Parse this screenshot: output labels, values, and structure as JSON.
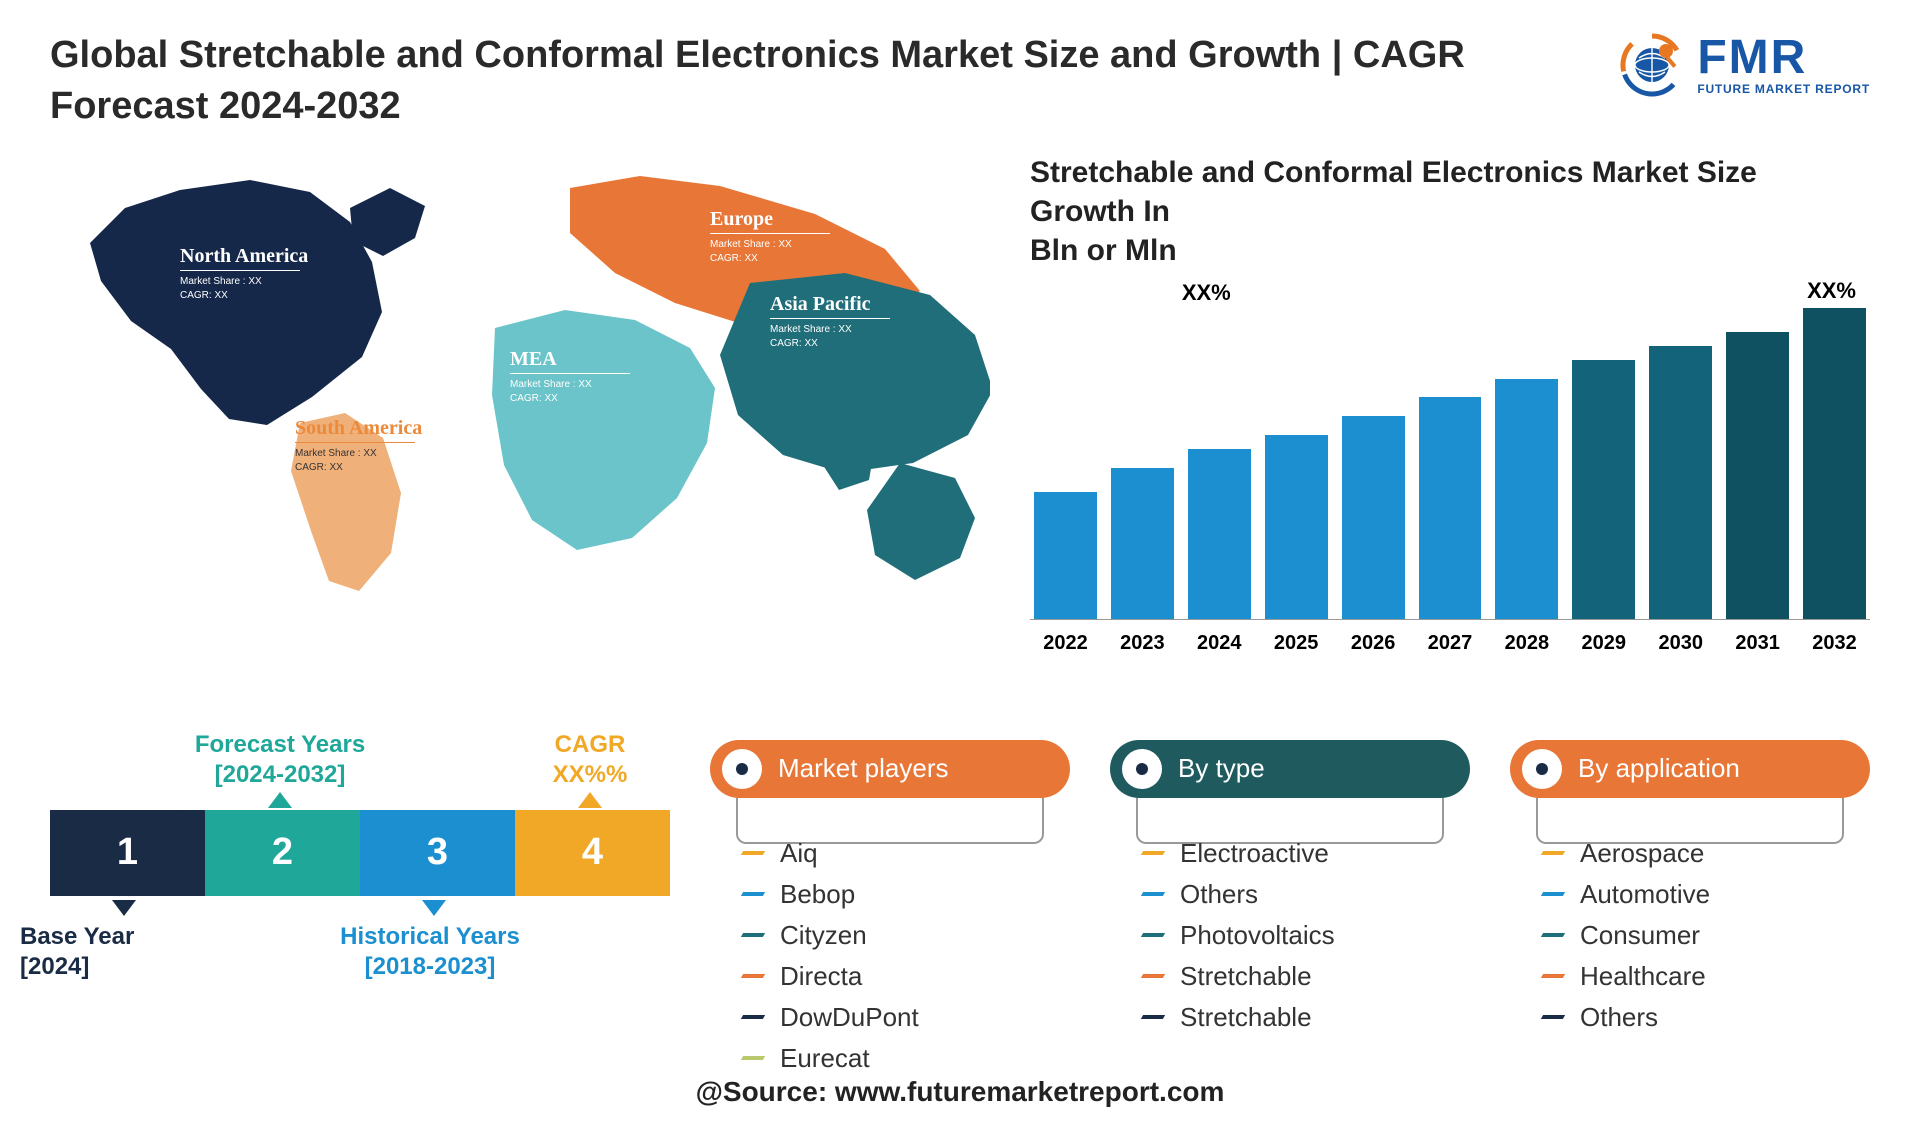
{
  "title": "Global Stretchable and Conformal Electronics Market Size and Growth | CAGR Forecast 2024-2032",
  "logo": {
    "main": "FMR",
    "sub": "FUTURE MARKET REPORT",
    "iconColor": "#e87722",
    "textColor": "#1857a5"
  },
  "map": {
    "regions": {
      "northAmerica": {
        "name": "North America",
        "shareLabel": "Market Share : XX",
        "cagrLabel": "CAGR: XX",
        "color": "#16284a"
      },
      "southAmerica": {
        "name": "South America",
        "shareLabel": "Market Share : XX",
        "cagrLabel": "CAGR: XX",
        "color": "#f0b07a"
      },
      "europe": {
        "name": "Europe",
        "shareLabel": "Market Share : XX",
        "cagrLabel": "CAGR: XX",
        "color": "#e87636"
      },
      "mea": {
        "name": "MEA",
        "shareLabel": "Market Share : XX",
        "cagrLabel": "CAGR: XX",
        "color": "#6ac4c9"
      },
      "asiaPacific": {
        "name": "Asia Pacific",
        "shareLabel": "Market Share : XX",
        "cagrLabel": "CAGR: XX",
        "color": "#1f6e79"
      }
    }
  },
  "chart": {
    "title": "Stretchable and Conformal Electronics Market Size Growth In\nBln or Mln",
    "type": "bar",
    "years": [
      "2022",
      "2023",
      "2024",
      "2025",
      "2026",
      "2027",
      "2028",
      "2029",
      "2030",
      "2031",
      "2032"
    ],
    "values": [
      135,
      160,
      180,
      195,
      215,
      235,
      255,
      275,
      290,
      305,
      330
    ],
    "ylim": [
      0,
      340
    ],
    "barColors": [
      "#1b8fcf",
      "#1b8fcf",
      "#1b8fcf",
      "#1b8fcf",
      "#1b8fcf",
      "#1b8fcf",
      "#1b8fcf",
      "#13647a",
      "#13647a",
      "#0f5061",
      "#0f5061"
    ],
    "calloutA": {
      "index": 2,
      "text": "XX%"
    },
    "calloutB": {
      "index": 10,
      "text": "XX%"
    },
    "labelFontSize": 20,
    "backgroundColor": "#ffffff"
  },
  "timeline": {
    "segments": [
      {
        "num": "1",
        "color": "#1a2b45"
      },
      {
        "num": "2",
        "color": "#1fa89a"
      },
      {
        "num": "3",
        "color": "#1b8fcf"
      },
      {
        "num": "4",
        "color": "#f0a826"
      }
    ],
    "captions": {
      "baseYear": {
        "line1": "Base Year",
        "line2": "[2024]",
        "color": "#1a2b45"
      },
      "forecast": {
        "line1": "Forecast Years",
        "line2": "[2024-2032]",
        "color": "#1fa89a"
      },
      "historical": {
        "line1": "Historical Years",
        "line2": "[2018-2023]",
        "color": "#1b8fcf"
      },
      "cagr": {
        "line1": "CAGR",
        "line2": "XX%%",
        "color": "#f0a826"
      }
    }
  },
  "panels": [
    {
      "title": "Market players",
      "headerColor": "#e87636",
      "dotColor": "#1a2b45",
      "tickColors": [
        "#f0a826",
        "#1b8fcf",
        "#1f6e79",
        "#e87636",
        "#1a2b45",
        "#b7c96b"
      ],
      "items": [
        "Aiq",
        "Bebop",
        "Cityzen",
        "Directa",
        "DowDuPont",
        "Eurecat"
      ]
    },
    {
      "title": "By type",
      "headerColor": "#1f5a5f",
      "dotColor": "#1a2b45",
      "tickColors": [
        "#f0a826",
        "#1b8fcf",
        "#1f6e79",
        "#e87636",
        "#1a2b45"
      ],
      "items": [
        "Electroactive",
        "Others",
        "Photovoltaics",
        "Stretchable",
        "Stretchable"
      ]
    },
    {
      "title": "By application",
      "headerColor": "#e87636",
      "dotColor": "#1a2b45",
      "tickColors": [
        "#f0a826",
        "#1b8fcf",
        "#1f6e79",
        "#e87636",
        "#1a2b45"
      ],
      "items": [
        "Aerospace",
        "Automotive",
        "Consumer",
        "Healthcare",
        "Others"
      ]
    }
  ],
  "source": "@Source: www.futuremarketreport.com"
}
